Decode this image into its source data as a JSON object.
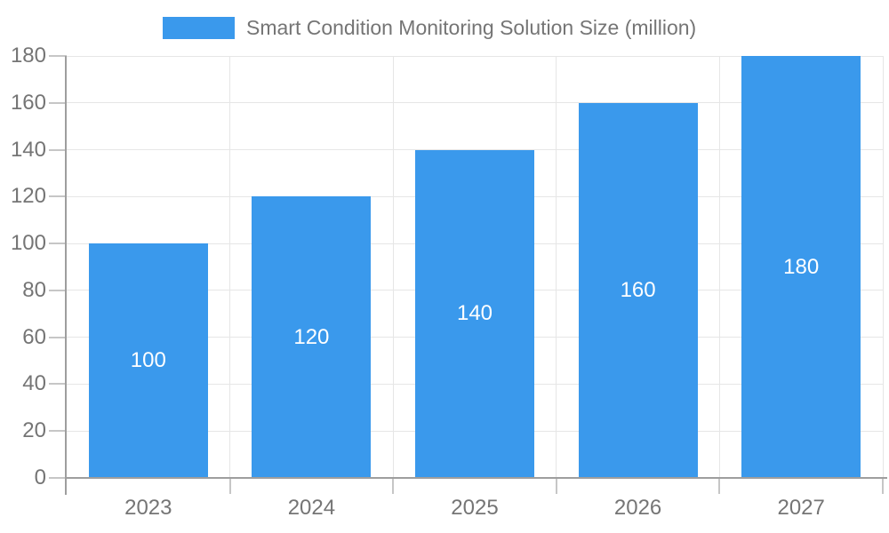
{
  "chart_data": {
    "type": "bar",
    "title": "",
    "categories": [
      "2023",
      "2024",
      "2025",
      "2026",
      "2027"
    ],
    "series": [
      {
        "name": "Smart Condition Monitoring Solution Size (million)",
        "values": [
          100,
          120,
          140,
          160,
          180
        ]
      }
    ],
    "bar_value_labels": [
      "100",
      "120",
      "140",
      "160",
      "180"
    ],
    "xlabel": "",
    "ylabel": "",
    "ylim": [
      0,
      180
    ],
    "ytick_step": 20,
    "yticks": [
      0,
      20,
      40,
      60,
      80,
      100,
      120,
      140,
      160,
      180
    ],
    "grid": true,
    "legend_position": "top",
    "colors": {
      "bar": "#3a99ec",
      "bar_label": "#ffffff",
      "axis_text": "#757575",
      "grid_line": "#e6e6e6",
      "axis_line": "#9e9e9e",
      "tick": "#c6c6c6"
    }
  }
}
